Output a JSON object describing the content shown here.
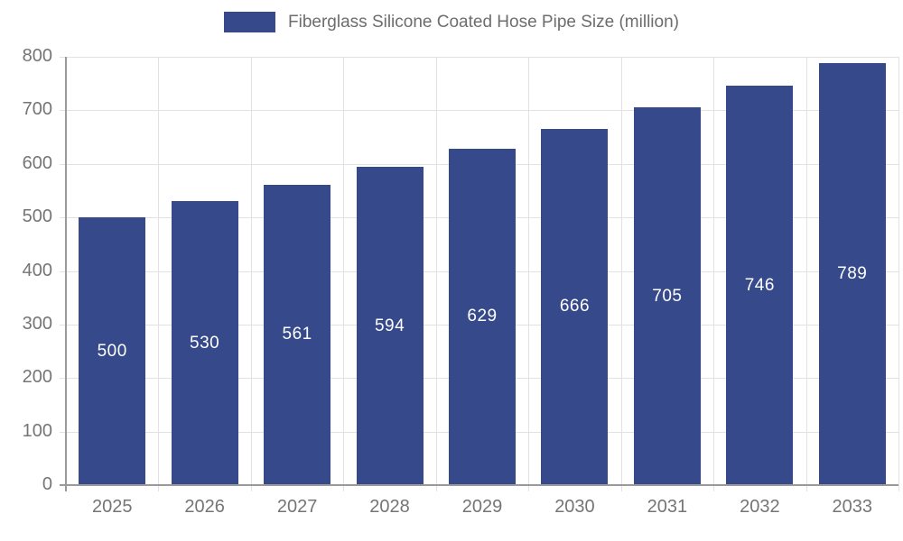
{
  "legend": {
    "label": "Fiberglass Silicone Coated Hose Pipe Size (million)"
  },
  "chart_data": {
    "type": "bar",
    "title": "Fiberglass Silicone Coated Hose Pipe Size (million)",
    "categories": [
      "2025",
      "2026",
      "2027",
      "2028",
      "2029",
      "2030",
      "2031",
      "2032",
      "2033"
    ],
    "values": [
      500,
      530,
      561,
      594,
      629,
      666,
      705,
      746,
      789
    ],
    "series": [
      {
        "name": "Fiberglass Silicone Coated Hose Pipe Size (million)",
        "values": [
          500,
          530,
          561,
          594,
          629,
          666,
          705,
          746,
          789
        ]
      }
    ],
    "xlabel": "",
    "ylabel": "",
    "ylim": [
      0,
      800
    ],
    "yticks": [
      0,
      100,
      200,
      300,
      400,
      500,
      600,
      700,
      800
    ],
    "grid": true,
    "legend_position": "top-center",
    "value_labels": "inside-center",
    "colors": {
      "bar": "#36498b",
      "value_label": "#ffffff",
      "axis_text": "#757575",
      "legend_text": "#6d6d6d",
      "gridline": "#e2e2e2",
      "axis_line": "#9a9a9a",
      "background": "#ffffff"
    }
  }
}
